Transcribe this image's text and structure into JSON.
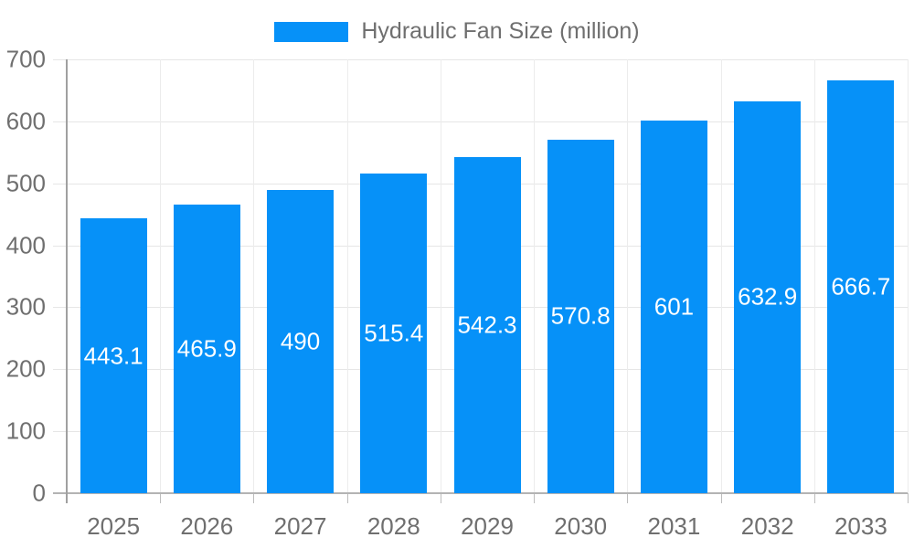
{
  "legend": {
    "items": [
      {
        "label": "Hydraulic Fan Size (million)",
        "color": "#0691f8"
      }
    ]
  },
  "chart_data": {
    "type": "bar",
    "title": "",
    "categories": [
      "2025",
      "2026",
      "2027",
      "2028",
      "2029",
      "2030",
      "2031",
      "2032",
      "2033"
    ],
    "series": [
      {
        "name": "Hydraulic Fan Size (million)",
        "color": "#0691f8",
        "values": [
          443.1,
          465.9,
          490,
          515.4,
          542.3,
          570.8,
          601,
          632.9,
          666.7
        ]
      }
    ],
    "xlabel": "",
    "ylabel": "",
    "ylim": [
      0,
      700
    ],
    "yticks": [
      0,
      100,
      200,
      300,
      400,
      500,
      600,
      700
    ],
    "grid": true,
    "legend_position": "top-center",
    "value_labels_position": "inside-center"
  },
  "colors": {
    "background": "#ffffff",
    "bar": "#0691f8",
    "grid_h": "#e6e6e6",
    "grid_v": "#ececec",
    "y_axis": "#a0a0a0",
    "x_axis": "#b3b3b3",
    "tick": "#bdbdbd",
    "axis_label": "#6f6f6f",
    "bar_label": "#ffffff"
  }
}
